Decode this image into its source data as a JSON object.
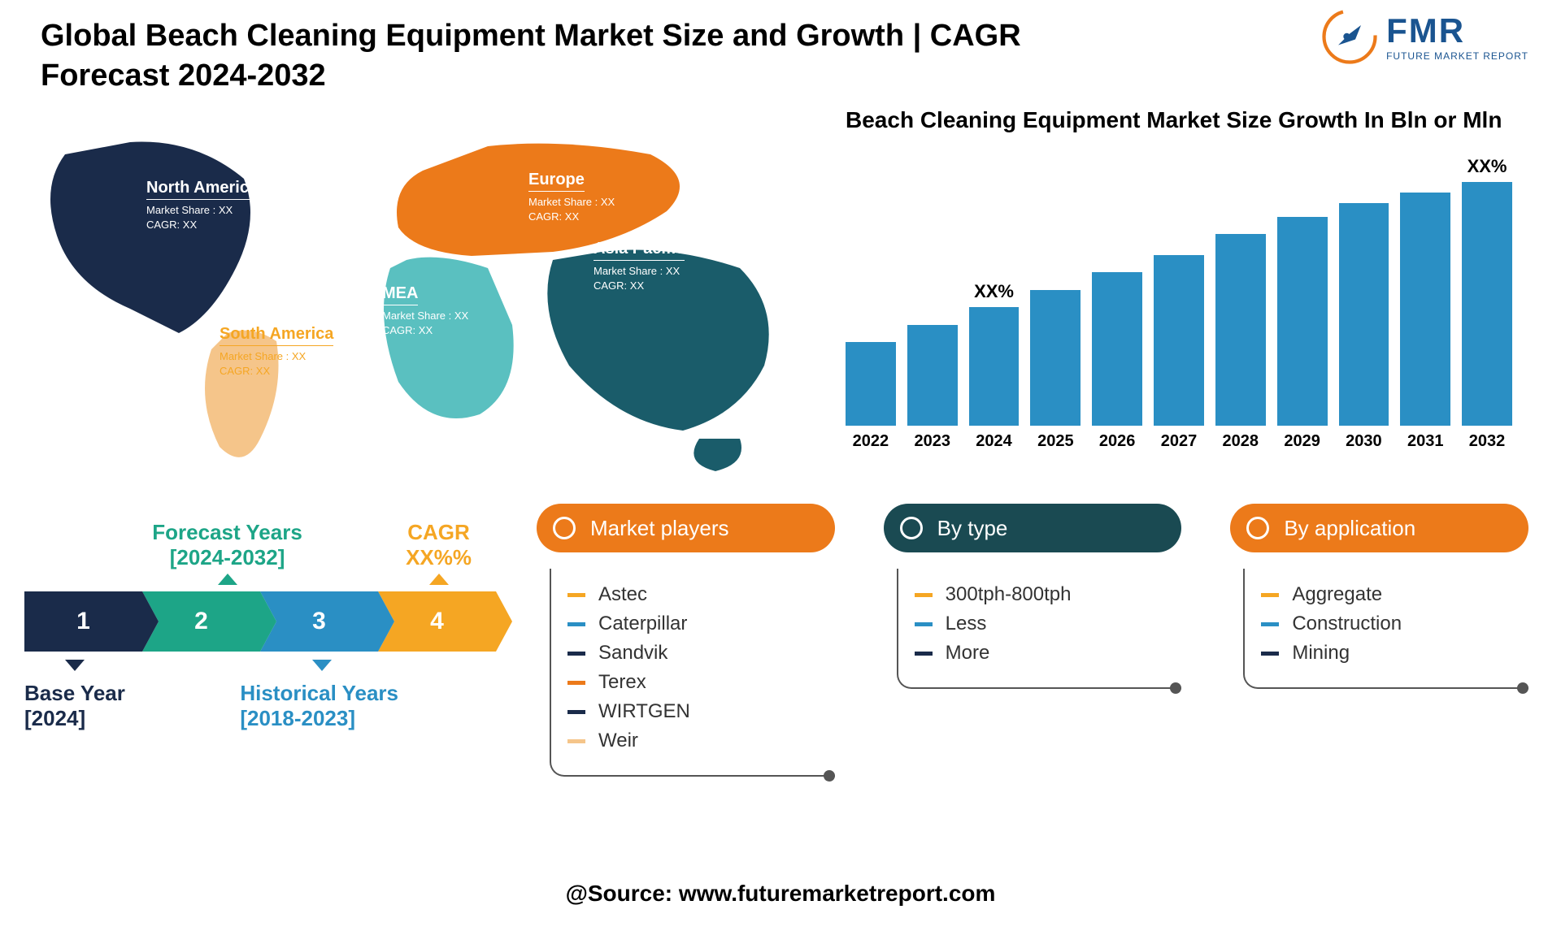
{
  "title": "Global Beach Cleaning Equipment Market Size and Growth | CAGR Forecast 2024-2032",
  "logo": {
    "fmr": "FMR",
    "tag": "FUTURE MARKET REPORT",
    "accent": "#ec7a1a",
    "blue": "#1a5490"
  },
  "map": {
    "regions": {
      "north_america": {
        "name": "North America",
        "share": "Market Share : XX",
        "cagr": "CAGR: XX",
        "color": "#1a2b4a"
      },
      "south_america": {
        "name": "South America",
        "share": "Market Share : XX",
        "cagr": "CAGR: XX",
        "color": "#f5c58a"
      },
      "europe": {
        "name": "Europe",
        "share": "Market Share : XX",
        "cagr": "CAGR: XX",
        "color": "#ec7a1a"
      },
      "mea": {
        "name": "MEA",
        "share": "Market Share : XX",
        "cagr": "CAGR: XX",
        "color": "#5ac0c0"
      },
      "asia_pacific": {
        "name": "Asia Pacific",
        "share": "Market Share : XX",
        "cagr": "CAGR: XX",
        "color": "#1a5c6a"
      }
    }
  },
  "chart": {
    "type": "bar",
    "title": "Beach Cleaning Equipment Market Size Growth In Bln or Mln",
    "years": [
      "2022",
      "2023",
      "2024",
      "2025",
      "2026",
      "2027",
      "2028",
      "2029",
      "2030",
      "2031",
      "2032"
    ],
    "values": [
      120,
      145,
      170,
      195,
      220,
      245,
      275,
      300,
      320,
      335,
      350
    ],
    "pct_labels": {
      "2024": "XX%",
      "2032": "XX%"
    },
    "bar_color": "#2a8fc4",
    "label_fontsize": 20,
    "title_fontsize": 28,
    "background": "#ffffff"
  },
  "timeline": {
    "forecast": {
      "label": "Forecast Years",
      "range": "[2024-2032]",
      "color": "#1da587"
    },
    "cagr": {
      "label": "CAGR",
      "value": "XX%%",
      "color": "#f5a623"
    },
    "base": {
      "label": "Base Year",
      "range": "[2024]",
      "color": "#1a2b4a"
    },
    "historical": {
      "label": "Historical Years",
      "range": "[2018-2023]",
      "color": "#2a8fc4"
    },
    "steps": [
      {
        "n": "1",
        "color": "#1a2b4a"
      },
      {
        "n": "2",
        "color": "#1da587"
      },
      {
        "n": "3",
        "color": "#2a8fc4"
      },
      {
        "n": "4",
        "color": "#f5a623"
      }
    ]
  },
  "categories": [
    {
      "title": "Market players",
      "pill_color": "#ec7a1a",
      "items": [
        {
          "label": "Astec",
          "tick": "#f5a623"
        },
        {
          "label": "Caterpillar",
          "tick": "#2a8fc4"
        },
        {
          "label": "Sandvik",
          "tick": "#1a2b4a"
        },
        {
          "label": "Terex",
          "tick": "#ec7a1a"
        },
        {
          "label": "WIRTGEN",
          "tick": "#1a2b4a"
        },
        {
          "label": "Weir",
          "tick": "#f5c58a"
        }
      ]
    },
    {
      "title": "By type",
      "pill_color": "#1a4a52",
      "items": [
        {
          "label": "300tph-800tph",
          "tick": "#f5a623"
        },
        {
          "label": "Less",
          "tick": "#2a8fc4"
        },
        {
          "label": "More",
          "tick": "#1a2b4a"
        }
      ]
    },
    {
      "title": "By application",
      "pill_color": "#ec7a1a",
      "items": [
        {
          "label": "Aggregate",
          "tick": "#f5a623"
        },
        {
          "label": "Construction",
          "tick": "#2a8fc4"
        },
        {
          "label": "Mining",
          "tick": "#1a2b4a"
        }
      ]
    }
  ],
  "source": "@Source: www.futuremarketreport.com"
}
